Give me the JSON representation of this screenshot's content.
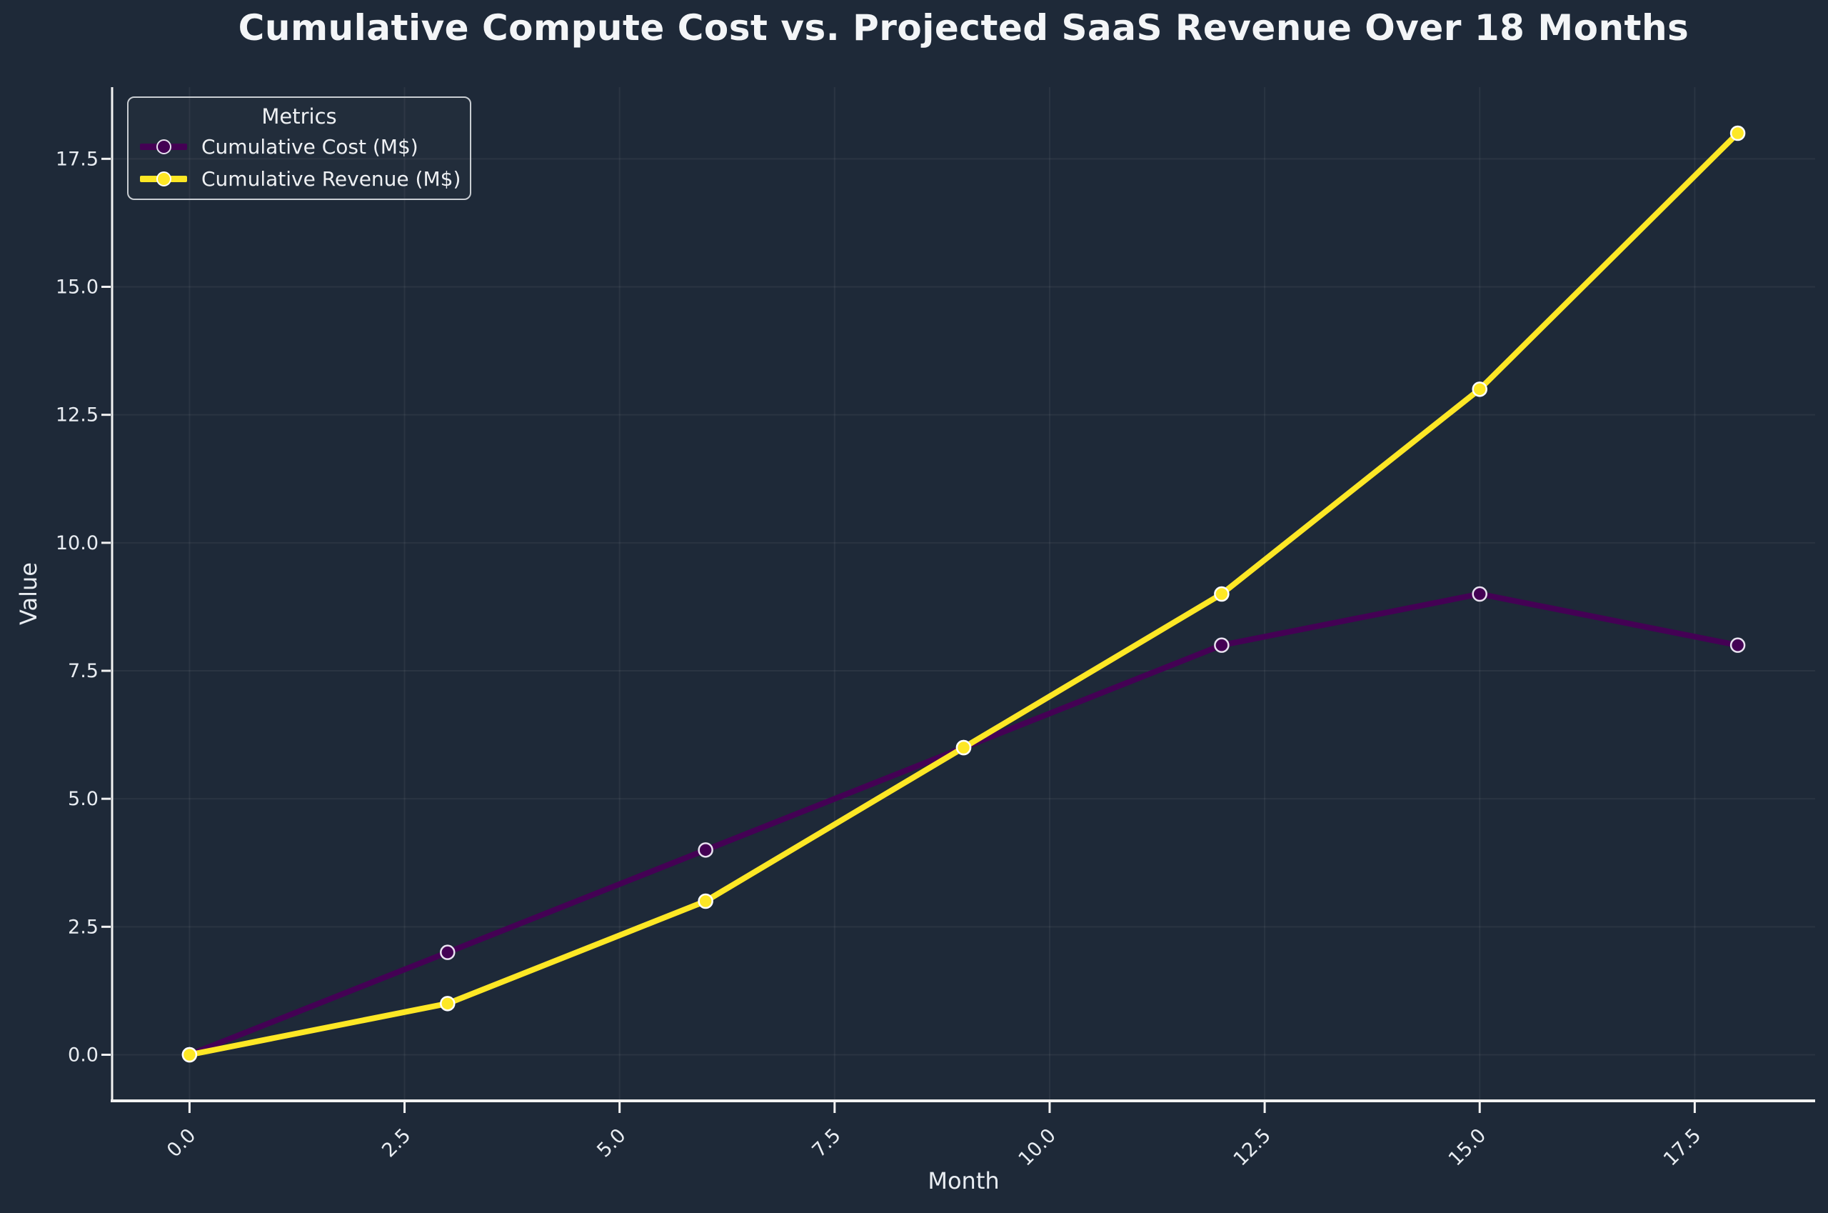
{
  "colors": {
    "background": "#1e2938",
    "axis_spine": "#f2f2f2",
    "tick_text": "#e9edf2",
    "title_text": "#f3f5f7",
    "grid_line": "rgba(255,255,255,0.055)"
  },
  "chart_data": {
    "type": "line",
    "title": "Cumulative Compute Cost vs. Projected SaaS Revenue Over 18 Months",
    "xlabel": "Month",
    "ylabel": "Value",
    "x": [
      0,
      3,
      6,
      9,
      12,
      15,
      18
    ],
    "series": [
      {
        "name": "Cumulative Cost (M$)",
        "values": [
          0,
          2,
          4,
          6,
          8,
          9,
          8
        ],
        "color": "#440154",
        "marker_face": "#440154",
        "marker_edge": "#e9e2f0"
      },
      {
        "name": "Cumulative Revenue (M$)",
        "values": [
          0,
          1,
          3,
          6,
          9,
          13,
          18
        ],
        "color": "#fde725",
        "marker_face": "#fde725",
        "marker_edge": "#ffffff"
      }
    ],
    "legend": {
      "title": "Metrics",
      "position": "upper left"
    },
    "x_ticks": [
      0,
      2.5,
      5,
      7.5,
      10,
      12.5,
      15,
      17.5
    ],
    "y_ticks": [
      0,
      2.5,
      5,
      7.5,
      10,
      12.5,
      15,
      17.5
    ],
    "x_tick_labels": [
      "0.0",
      "2.5",
      "5.0",
      "7.5",
      "10.0",
      "12.5",
      "15.0",
      "17.5"
    ],
    "y_tick_labels": [
      "0.0",
      "2.5",
      "5.0",
      "7.5",
      "10.0",
      "12.5",
      "15.0",
      "17.5"
    ],
    "xlim": [
      -0.9,
      18.9
    ],
    "ylim": [
      -0.9,
      18.9
    ],
    "grid": true,
    "x_tick_rotation_deg": 45
  }
}
